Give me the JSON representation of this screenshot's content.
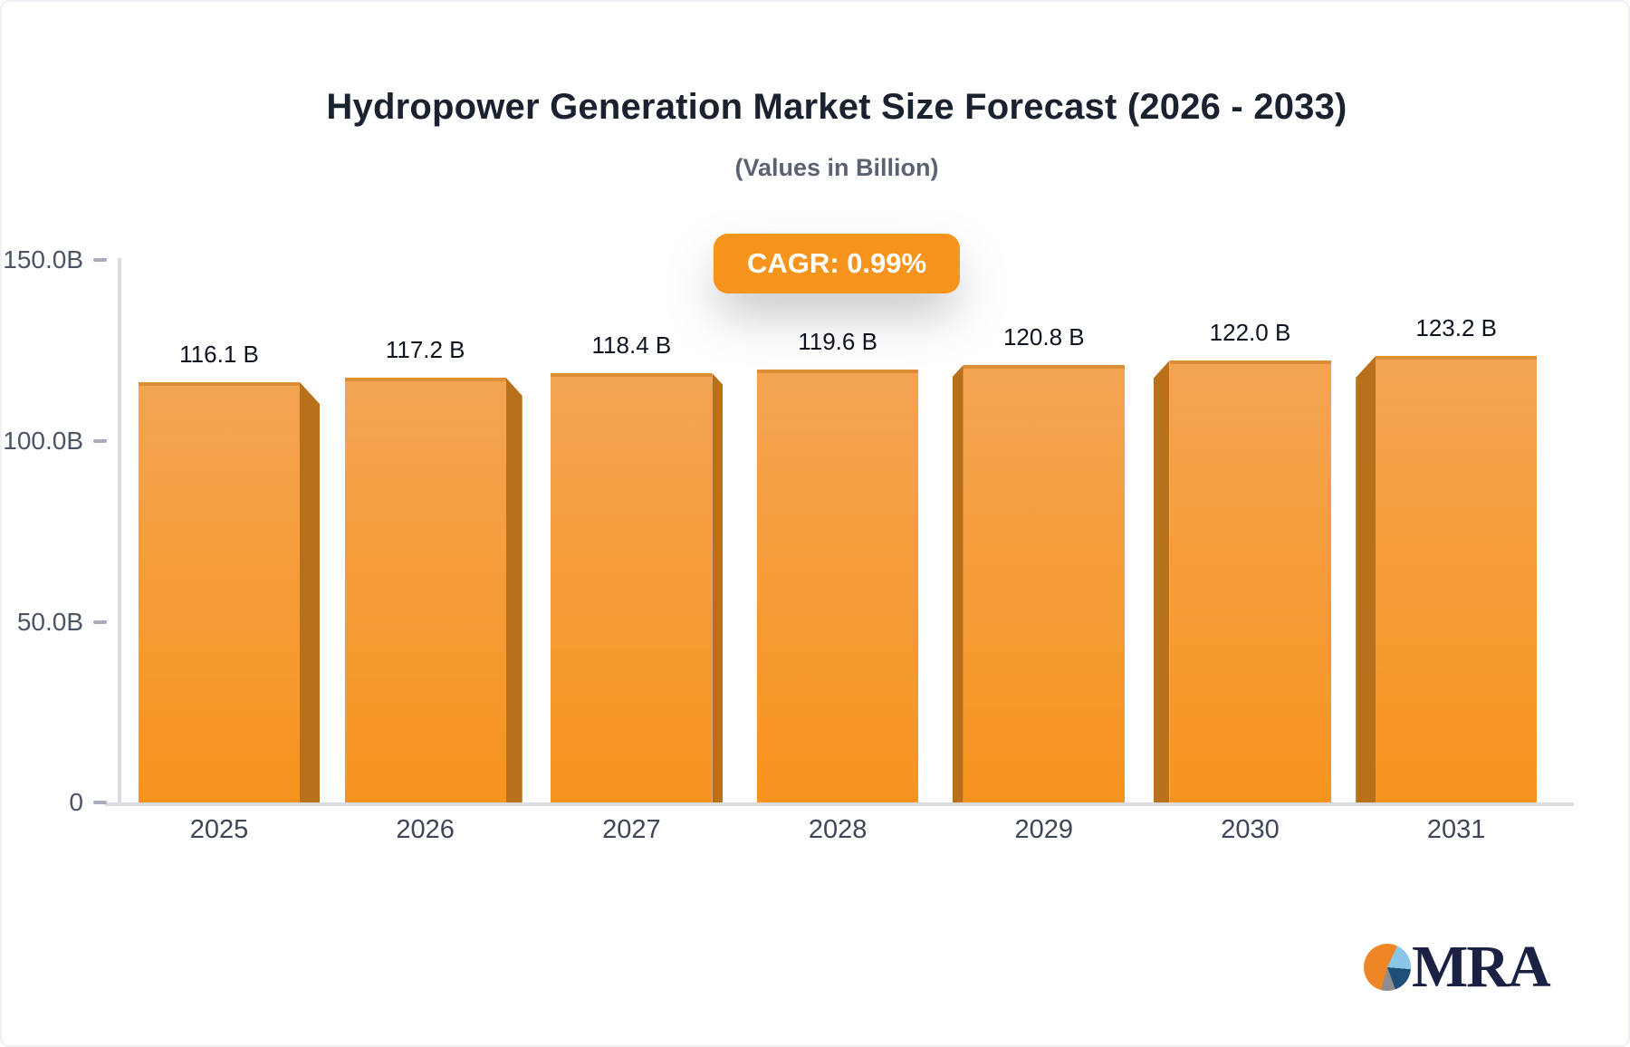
{
  "header": {
    "title": "Hydropower Generation Market Size Forecast (2026 - 2033)",
    "subtitle": "(Values in Billion)",
    "cagr_badge": "CAGR: 0.99%"
  },
  "chart_data": {
    "type": "bar",
    "title": "Hydropower Generation Market Size Forecast (2026 - 2033)",
    "subtitle": "(Values in Billion)",
    "annotation": "CAGR: 0.99%",
    "categories": [
      "2025",
      "2026",
      "2027",
      "2028",
      "2029",
      "2030",
      "2031"
    ],
    "values": [
      116.1,
      117.2,
      118.4,
      119.6,
      120.8,
      122.0,
      123.2
    ],
    "value_labels": [
      "116.1 B",
      "117.2 B",
      "118.4 B",
      "119.6 B",
      "120.8 B",
      "122.0 B",
      "123.2 B"
    ],
    "xlabel": "",
    "ylabel": "",
    "ylim": [
      0,
      150
    ],
    "yticks": [
      "150.0B",
      "100.0B",
      "50.0B",
      "0"
    ],
    "grid": false,
    "legend": false,
    "bar_style": "3d-extruded, perspective toward center bar",
    "colors": {
      "bar_top": "#F3A452",
      "bar_bottom": "#F7941E",
      "bar_side": "#B9701A",
      "badge_bg": "#F7941E",
      "badge_text": "#FFFFFF",
      "axis": "#D9DCE1",
      "tick": "#A7AEB9",
      "y_label": "#4C5566",
      "x_label": "#3E4657",
      "value_label": "#0E1320",
      "title": "#1A2230",
      "subtitle": "#5A6372"
    }
  },
  "branding": {
    "logo_text": "MRA",
    "pie_icon_colors": [
      "#EF8626",
      "#8AC6E8",
      "#1F4E79",
      "#8D8D8F"
    ]
  }
}
